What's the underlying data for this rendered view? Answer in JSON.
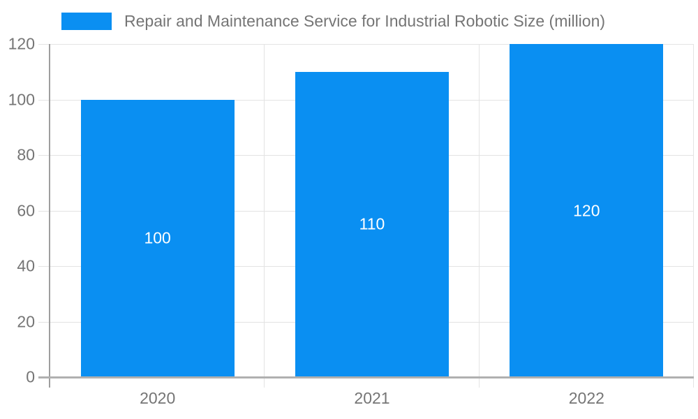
{
  "chart_data": {
    "type": "bar",
    "title": "Repair and Maintenance Service for Industrial Robotic Size (million)",
    "categories": [
      "2020",
      "2021",
      "2022"
    ],
    "series": [
      {
        "name": "Repair and Maintenance Service for Industrial Robotic Size (million)",
        "values": [
          100,
          110,
          120
        ]
      }
    ],
    "data_labels": [
      "100",
      "110",
      "120"
    ],
    "xlabel": "",
    "ylabel": "",
    "ylim": [
      0,
      120
    ],
    "yticks": [
      0,
      20,
      40,
      60,
      80,
      100,
      120
    ],
    "grid": true,
    "legend_position": "top-left",
    "colors": {
      "bar": "#0a8ff2",
      "bar_value_text": "#ffffff",
      "axis_text": "#757575",
      "grid_line": "#e3e3e3",
      "axis_line": "#9e9e9e",
      "baseline": "#b0b0b0",
      "background": "#ffffff"
    }
  }
}
